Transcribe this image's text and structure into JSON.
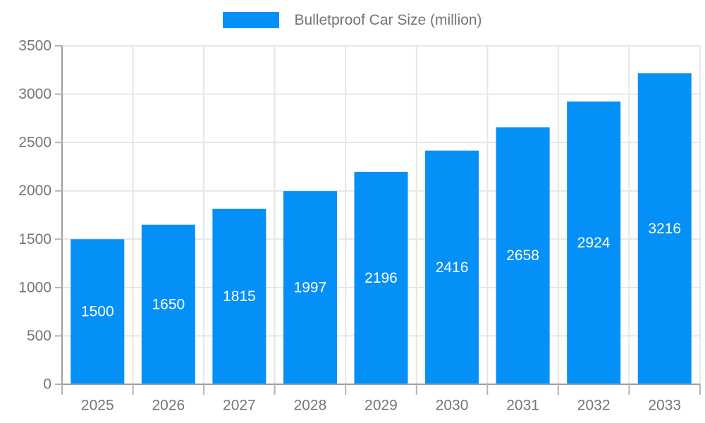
{
  "chart_data": {
    "type": "bar",
    "title": "Bulletproof Car Size (million)",
    "categories": [
      "2025",
      "2026",
      "2027",
      "2028",
      "2029",
      "2030",
      "2031",
      "2032",
      "2033"
    ],
    "values": [
      1500,
      1650,
      1815,
      1997,
      2196,
      2416,
      2658,
      2924,
      3216
    ],
    "value_labels": [
      "1500",
      "1650",
      "1815",
      "1997",
      "2196",
      "2416",
      "2658",
      "2924",
      "3216"
    ],
    "xlabel": "",
    "ylabel": "",
    "ylim": [
      0,
      3500
    ],
    "yticks": [
      0,
      500,
      1000,
      1500,
      2000,
      2500,
      3000,
      3500
    ],
    "ytick_labels": [
      "0",
      "500",
      "1000",
      "1500",
      "2000",
      "2500",
      "3000",
      "3500"
    ],
    "legend_position": "top",
    "grid": true,
    "colors": {
      "bar": "#0590f8",
      "value_label": "#ffffff",
      "axis_text": "#757575",
      "grid_line": "#e6e6e6",
      "axis_line": "#9e9e9e",
      "tick": "#b3b3b3",
      "background": "#ffffff"
    }
  }
}
